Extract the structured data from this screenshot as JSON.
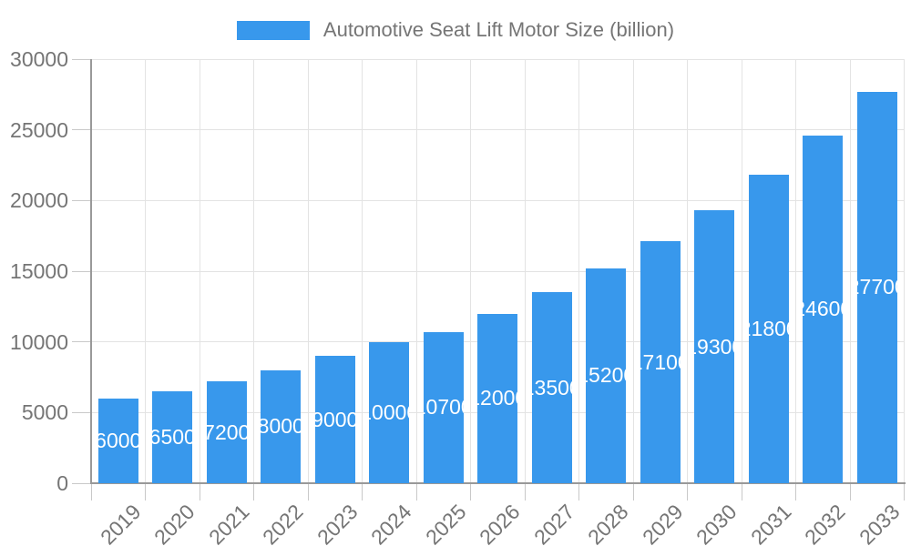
{
  "legend": {
    "label": "Automotive Seat Lift Motor Size (billion)"
  },
  "colors": {
    "bar": "#3898EC",
    "axis_label_text": "#757575",
    "bar_label_text": "#FFFFFF",
    "gridline": "#E3E3E3",
    "axis_line": "#999999",
    "tick": "#C9C9C9",
    "background": "#FFFFFF"
  },
  "chart_data": {
    "type": "bar",
    "title": "Automotive Seat Lift Motor Size (billion)",
    "legend_entries": [
      "Automotive Seat Lift Motor Size (billion)"
    ],
    "legend_position": "top",
    "categories": [
      "2019",
      "2020",
      "2021",
      "2022",
      "2023",
      "2024",
      "2025",
      "2026",
      "2027",
      "2028",
      "2029",
      "2030",
      "2031",
      "2032",
      "2033"
    ],
    "values": [
      6000,
      6500,
      7200,
      8000,
      9000,
      10000,
      10700,
      12000,
      13500,
      15200,
      17100,
      19300,
      21800,
      24600,
      27700
    ],
    "xlabel": "",
    "ylabel": "",
    "ylim": [
      0,
      30000
    ],
    "ytick_interval": 5000,
    "yticks": [
      0,
      5000,
      10000,
      15000,
      20000,
      25000,
      30000
    ],
    "grid": true,
    "bar_label_position": "inside-center",
    "x_label_rotation_deg": -45
  }
}
